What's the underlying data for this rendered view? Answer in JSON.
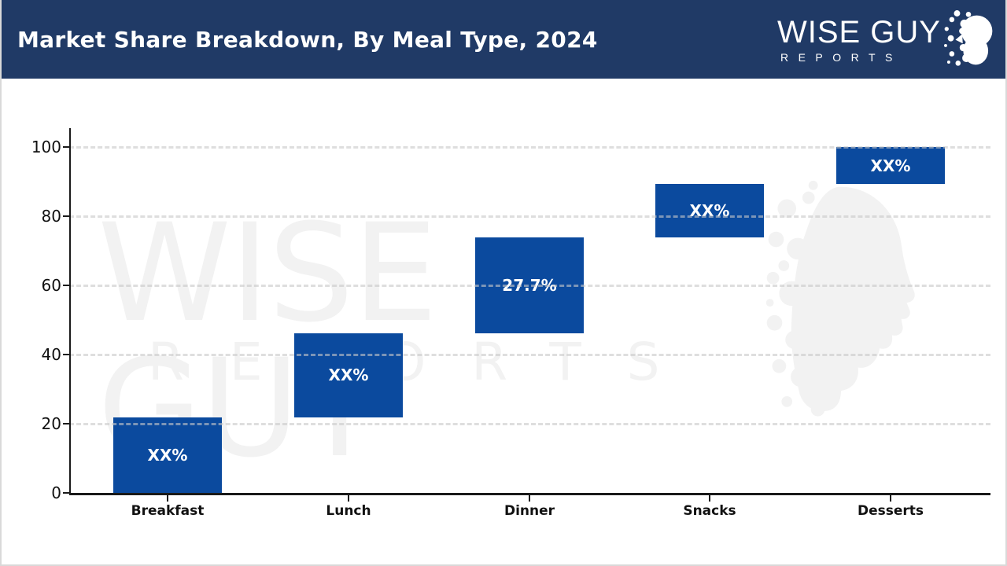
{
  "header": {
    "title": "Market Share Breakdown, By Meal Type, 2024",
    "logo": {
      "line1": "WISE GUY",
      "line2": "REPORTS"
    }
  },
  "watermark": {
    "line1": "WISE GUY",
    "line2": "REPORTS"
  },
  "chart_data": {
    "type": "bar",
    "subtype": "waterfall",
    "title": "Market Share Breakdown, By Meal Type, 2024",
    "categories": [
      "Breakfast",
      "Lunch",
      "Dinner",
      "Snacks",
      "Desserts"
    ],
    "segments": [
      {
        "category": "Breakfast",
        "start": 0,
        "end": 21.8,
        "label": "XX%"
      },
      {
        "category": "Lunch",
        "start": 21.8,
        "end": 46.2,
        "label": "XX%"
      },
      {
        "category": "Dinner",
        "start": 46.2,
        "end": 73.9,
        "label": "27.7%"
      },
      {
        "category": "Snacks",
        "start": 73.9,
        "end": 89.3,
        "label": "XX%"
      },
      {
        "category": "Desserts",
        "start": 89.3,
        "end": 100,
        "label": "XX%"
      }
    ],
    "yticks": [
      0,
      20,
      40,
      60,
      80,
      100
    ],
    "ylim": [
      0,
      105
    ],
    "xlabel": "",
    "ylabel": "",
    "grid": "dashed-horizontal",
    "legend": "none",
    "bar_color": "#0b4a9e",
    "value_label_color": "#ffffff",
    "axis_color": "#1a1a1a"
  },
  "colors": {
    "header_bg": "#203a66",
    "bar": "#0b4a9e",
    "watermark": "#f2f2f2",
    "page_border": "#d9d9d9"
  }
}
